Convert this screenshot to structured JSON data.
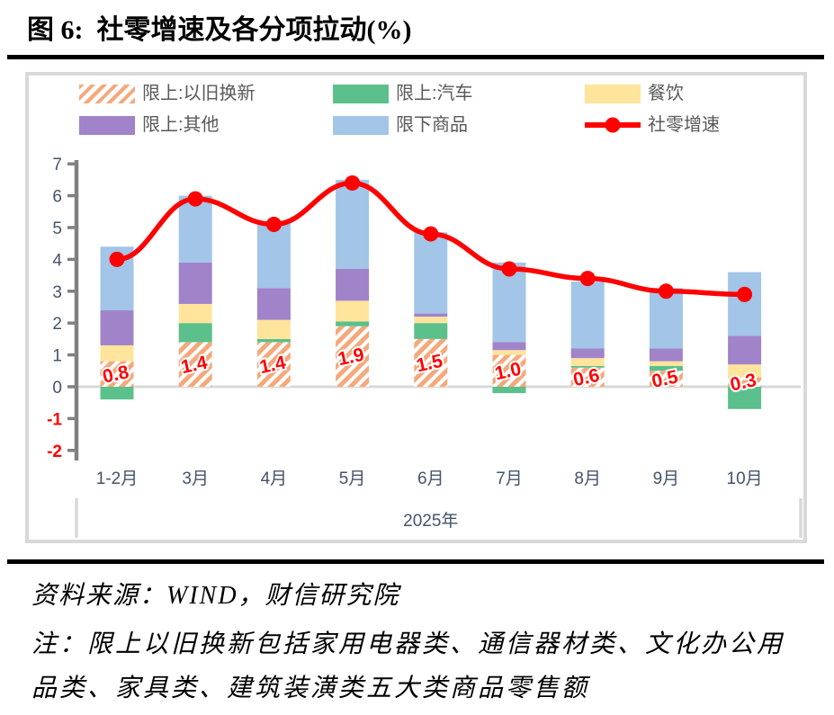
{
  "page": {
    "title": "图 6:  社零增速及各分项拉动(%)"
  },
  "legend": {
    "items": [
      {
        "label": "限上:以旧换新",
        "series_index": 0
      },
      {
        "label": "限上:汽车",
        "series_index": 1
      },
      {
        "label": "餐饮",
        "series_index": 2
      },
      {
        "label": "限上:其他",
        "series_index": 3
      },
      {
        "label": "限下商品",
        "series_index": 4
      },
      {
        "label": "社零增速",
        "series_index": 5
      }
    ]
  },
  "chart_data": {
    "type": "combo: stacked-bar + line",
    "categories": [
      "1-2月",
      "3月",
      "4月",
      "5月",
      "6月",
      "7月",
      "8月",
      "9月",
      "10月"
    ],
    "x_group_label": "2025年",
    "y_ticks": [
      7,
      6,
      5,
      4,
      3,
      2,
      1,
      0,
      -1,
      -2
    ],
    "ylim": [
      -2,
      7
    ],
    "grid": "zero-line-only",
    "legend_position": "top",
    "series": [
      {
        "name": "限上:以旧换新",
        "type": "bar",
        "pattern": "hatched",
        "color": "#F4A97C",
        "values": [
          0.8,
          1.4,
          1.4,
          1.9,
          1.5,
          1.0,
          0.6,
          0.5,
          0.3
        ]
      },
      {
        "name": "限上:汽车",
        "type": "bar",
        "color": "#5BC08B",
        "values": [
          -0.4,
          0.6,
          0.1,
          0.15,
          0.5,
          -0.2,
          0.05,
          0.15,
          -0.7
        ]
      },
      {
        "name": "餐饮",
        "type": "bar",
        "color": "#FFE49C",
        "values": [
          0.5,
          0.6,
          0.6,
          0.65,
          0.2,
          0.15,
          0.25,
          0.15,
          0.4
        ]
      },
      {
        "name": "限上:其他",
        "type": "bar",
        "color": "#A183C9",
        "values": [
          1.1,
          1.3,
          1.0,
          1.0,
          0.1,
          0.25,
          0.3,
          0.4,
          0.9
        ]
      },
      {
        "name": "限下商品",
        "type": "bar",
        "color": "#A2C5E8",
        "values": [
          2.0,
          2.1,
          2.1,
          2.8,
          2.55,
          2.5,
          2.1,
          1.9,
          2.0
        ]
      },
      {
        "name": "社零增速",
        "type": "line",
        "color": "#FE0000",
        "values": [
          4.0,
          5.9,
          5.1,
          6.4,
          4.8,
          3.7,
          3.4,
          3.0,
          2.9
        ]
      }
    ],
    "bar_value_labels": {
      "series": "限上:以旧换新",
      "values": [
        "0.8",
        "1.4",
        "1.4",
        "1.9",
        "1.5",
        "1.0",
        "0.6",
        "0.5",
        "0.3"
      ],
      "color": "#FF0000"
    },
    "axis_colors": {
      "ticks_positive": "#44546A",
      "ticks_negative": "#FF0000",
      "axis_line": "#808080"
    }
  },
  "footer": {
    "source": "资料来源：WIND，财信研究院",
    "note": "注：限上以旧换新包括家用电器类、通信器材类、文化办公用品类、家具类、建筑装潢类五大类商品零售额"
  }
}
